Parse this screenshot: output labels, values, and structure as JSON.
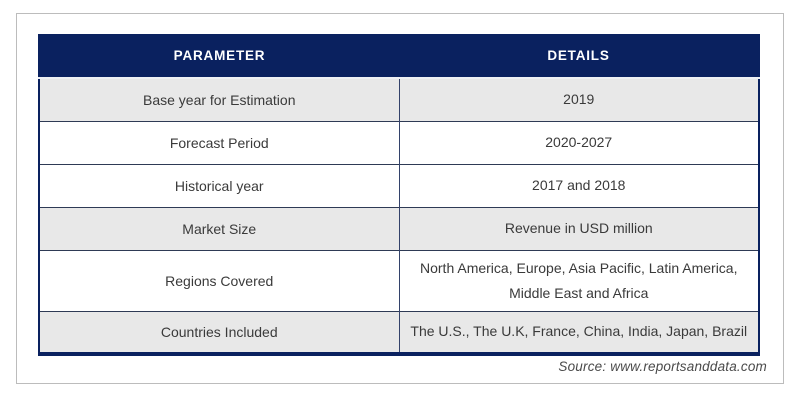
{
  "table": {
    "headers": [
      "PARAMETER",
      "DETAILS"
    ],
    "rows": [
      {
        "parameter": "Base year for Estimation",
        "details": [
          "2019"
        ],
        "shaded": true
      },
      {
        "parameter": "Forecast Period",
        "details": [
          "2020-2027"
        ],
        "shaded": false
      },
      {
        "parameter": "Historical year",
        "details": [
          "2017 and 2018"
        ],
        "shaded": false
      },
      {
        "parameter": "Market Size",
        "details": [
          "Revenue in USD million"
        ],
        "shaded": true
      },
      {
        "parameter": "Regions Covered",
        "details": [
          "North America, Europe, Asia Pacific, Latin America,",
          "Middle East and Africa"
        ],
        "shaded": false
      },
      {
        "parameter": "Countries Included",
        "details": [
          "The U.S., The  U.K, France, China, India, Japan, Brazil"
        ],
        "shaded": true
      }
    ]
  },
  "source": "Source: www.reportsanddata.com",
  "colors": {
    "header_bg": "#0a215f",
    "header_text": "#ffffff",
    "row_bg": "#ffffff",
    "row_alt_bg": "#e8e8e8",
    "border": "#0a215f",
    "divider": "#2e3a55",
    "text": "#3a3a3a",
    "source_text": "#4a4a4a",
    "frame_border": "#bcbcbc"
  },
  "chart_data": {
    "type": "table",
    "title": "Report scope summary",
    "columns": [
      "PARAMETER",
      "DETAILS"
    ],
    "rows": [
      [
        "Base year for Estimation",
        "2019"
      ],
      [
        "Forecast Period",
        "2020-2027"
      ],
      [
        "Historical year",
        "2017 and 2018"
      ],
      [
        "Market Size",
        "Revenue in USD million"
      ],
      [
        "Regions Covered",
        "North America, Europe, Asia Pacific, Latin America, Middle East and Africa"
      ],
      [
        "Countries Included",
        "The U.S., The  U.K, France, China, India, Japan, Brazil"
      ]
    ],
    "source": "Source: www.reportsanddata.com",
    "layout_hints": {
      "header_style": "navy background, white uppercase bold text",
      "shaded_row_indices": [
        0,
        3,
        5
      ],
      "legend_position": "none",
      "grid": "on"
    }
  }
}
